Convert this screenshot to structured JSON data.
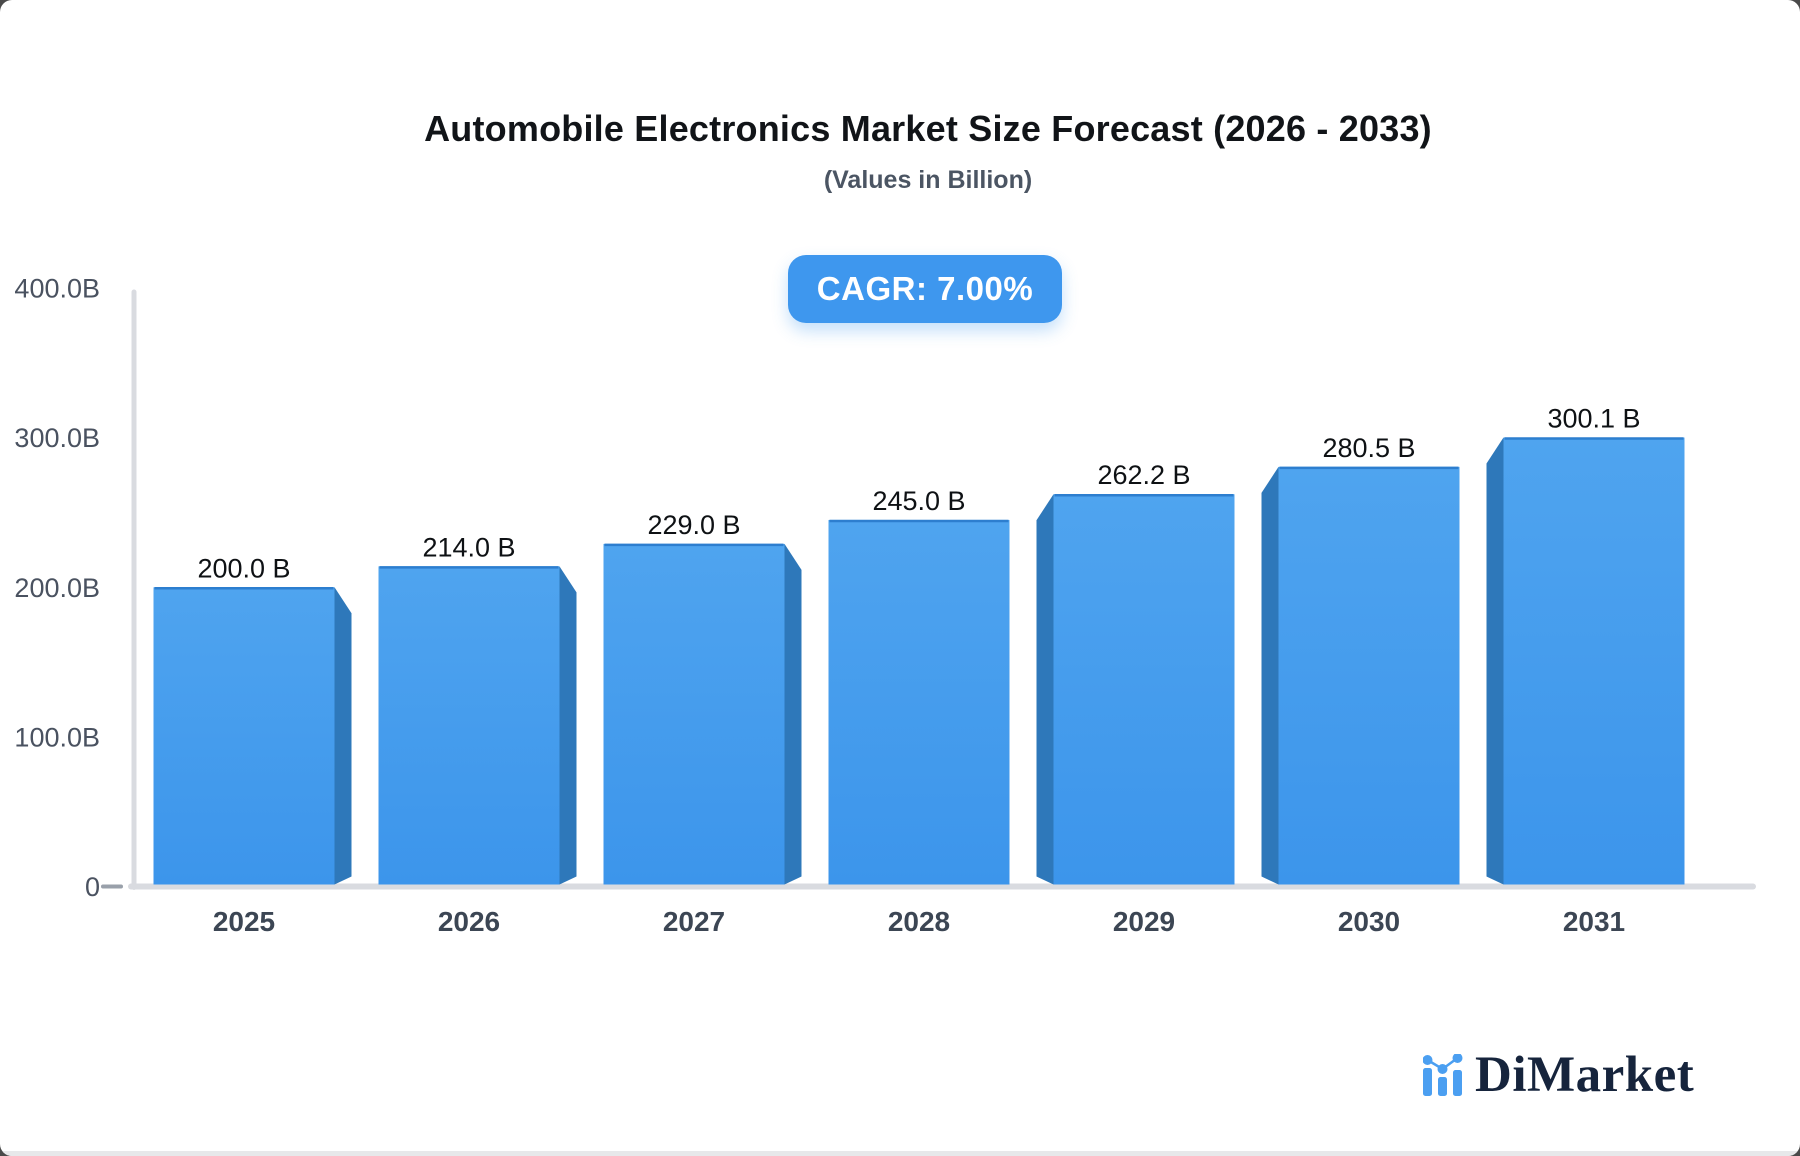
{
  "header": {
    "title": "Automobile Electronics Market Size Forecast (2026 - 2033)",
    "subtitle": "(Values in Billion)"
  },
  "badge": {
    "label": "CAGR: 7.00%",
    "bg": "#3e97ee",
    "text_color": "#ffffff"
  },
  "chart_data": {
    "type": "bar",
    "title": "Automobile Electronics Market Size Forecast (2026 - 2033)",
    "subtitle": "(Values in Billion)",
    "categories": [
      "2025",
      "2026",
      "2027",
      "2028",
      "2029",
      "2030",
      "2031"
    ],
    "values": [
      200.0,
      214.0,
      229.0,
      245.0,
      262.2,
      280.5,
      300.1
    ],
    "bar_labels": [
      "200.0 B",
      "214.0 B",
      "229.0 B",
      "245.0 B",
      "262.2 B",
      "280.5 B",
      "300.1 B"
    ],
    "xlabel": "",
    "ylabel": "",
    "ylim": [
      0,
      400
    ],
    "y_ticks": [
      "400.0B",
      "300.0B",
      "200.0B",
      "100.0B",
      "0"
    ],
    "y_tick_values": [
      400,
      300,
      200,
      100,
      0
    ],
    "grid": false,
    "legend": false,
    "colors": {
      "bar_face_top": "#4fa4ef",
      "bar_face_bottom": "#3c95eb",
      "bar_top_edge": "#2d7ecf",
      "bar_side": "#2e78ba",
      "axis": "#d9dbe0",
      "zero_tick": "#99a0aa",
      "value_label": "#0e1114",
      "tick_label": "#4a5260",
      "category_label": "#3c4654"
    }
  },
  "logo": {
    "text": "DiMarket",
    "icon": "bar-chart-logo-icon",
    "text_color": "#16243c",
    "icon_color": "#4b9ff1"
  }
}
